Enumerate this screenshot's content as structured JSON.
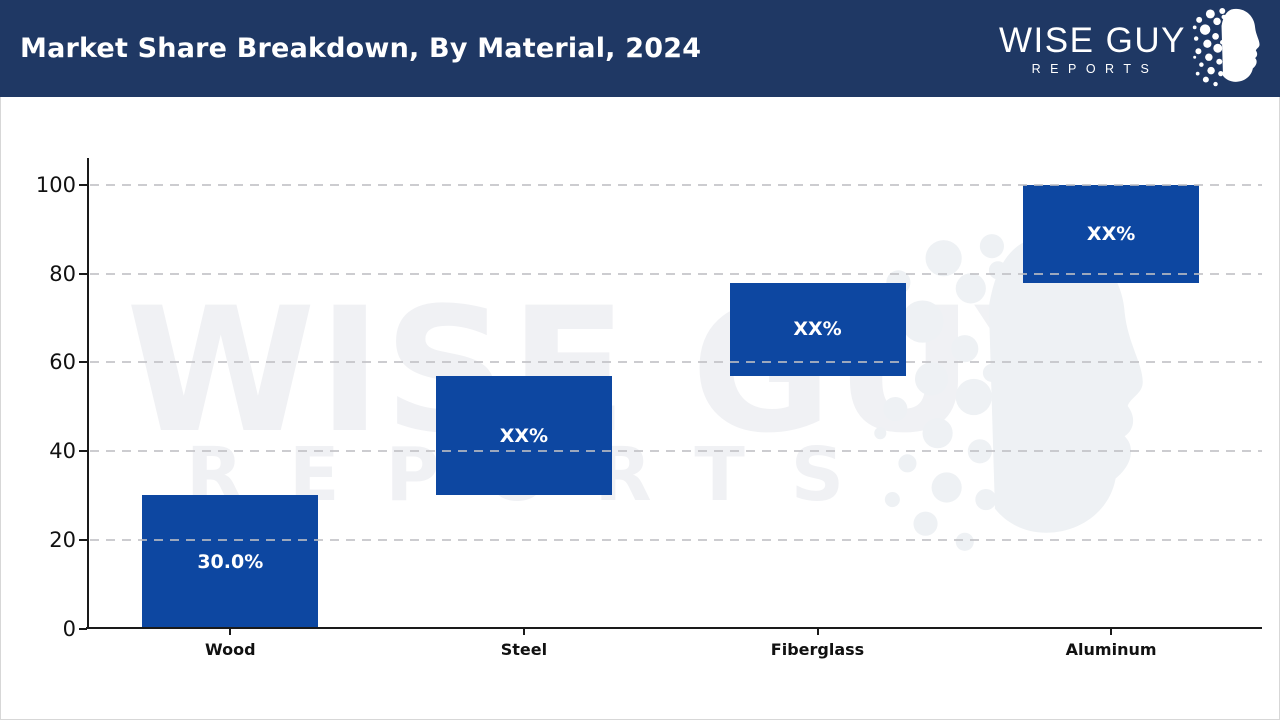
{
  "header": {
    "title": "Market Share Breakdown, By Material, 2024",
    "logo": {
      "line1": "WISE GUY",
      "line2": "REPORTS"
    }
  },
  "watermark": {
    "line1": "WISE GUY",
    "line2": "REPORTS"
  },
  "colors": {
    "header_bg": "#1f3864",
    "bar": "#0d47a1",
    "bar_label": "#ffffff",
    "axis": "#1a1a1a",
    "grid": "#c8c8cc",
    "watermark": "#f0f1f4"
  },
  "chart_data": {
    "type": "bar",
    "subtype": "waterfall",
    "title": "Market Share Breakdown, By Material, 2024",
    "categories": [
      "Wood",
      "Steel",
      "Fiberglass",
      "Aluminum"
    ],
    "series": [
      {
        "name": "Market share (%)",
        "segments": [
          {
            "category": "Wood",
            "start": 0,
            "end": 30,
            "label": "30.0%"
          },
          {
            "category": "Steel",
            "start": 30,
            "end": 57,
            "label": "XX%"
          },
          {
            "category": "Fiberglass",
            "start": 57,
            "end": 78,
            "label": "XX%"
          },
          {
            "category": "Aluminum",
            "start": 78,
            "end": 100,
            "label": "XX%"
          }
        ]
      }
    ],
    "xlabel": "",
    "ylabel": "",
    "ylim": [
      0,
      105
    ],
    "yticks": [
      "0",
      "20",
      "40",
      "60",
      "80",
      "100"
    ],
    "grid": "horizontal-dashed",
    "legend": "none",
    "bar_color": "#0d47a1",
    "bar_label_color": "#ffffff"
  }
}
